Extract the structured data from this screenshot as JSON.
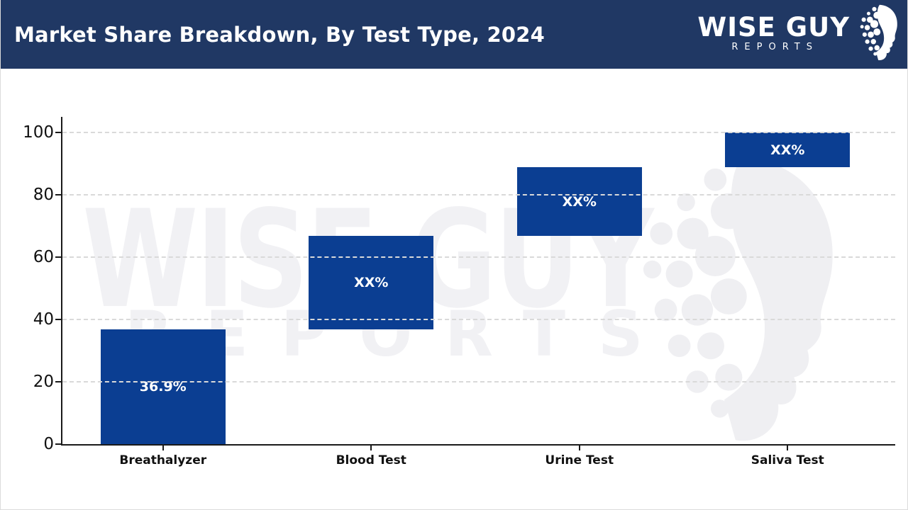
{
  "header": {
    "title": "Market Share Breakdown, By Test Type, 2024",
    "logo": {
      "line1": "WISE GUY",
      "line2": "REPORTS"
    }
  },
  "watermark": {
    "line1": "WISE GUY",
    "line2": "REPORTS"
  },
  "colors": {
    "header_bg": "#203864",
    "bar_blue": "#0b3e92",
    "grid": "#d9d9d9",
    "axis": "#1a1a1a",
    "bar_label": "#ffffff",
    "watermark": "#f1f1f4"
  },
  "chart_data": {
    "type": "bar",
    "subtype": "stacked-waterfall",
    "title": "Market Share Breakdown, By Test Type, 2024",
    "xlabel": "",
    "ylabel": "",
    "categories": [
      "Breathalyzer",
      "Blood Test",
      "Urine Test",
      "Saliva Test"
    ],
    "segments": [
      {
        "category": "Breathalyzer",
        "start": 0,
        "end": 36.9,
        "value": 36.9,
        "label": "36.9%"
      },
      {
        "category": "Blood Test",
        "start": 36.9,
        "end": 66.7,
        "value": 29.8,
        "label": "XX%"
      },
      {
        "category": "Urine Test",
        "start": 66.7,
        "end": 88.7,
        "value": 22.0,
        "label": "XX%"
      },
      {
        "category": "Saliva Test",
        "start": 88.7,
        "end": 100,
        "value": 11.3,
        "label": "XX%"
      }
    ],
    "yticks": [
      0,
      20,
      40,
      60,
      80,
      100
    ],
    "ylim": [
      0,
      105
    ],
    "grid": true,
    "grid_style": "dashed",
    "legend": false,
    "bar_color": "#0b3e92",
    "label_color": "#ffffff"
  }
}
